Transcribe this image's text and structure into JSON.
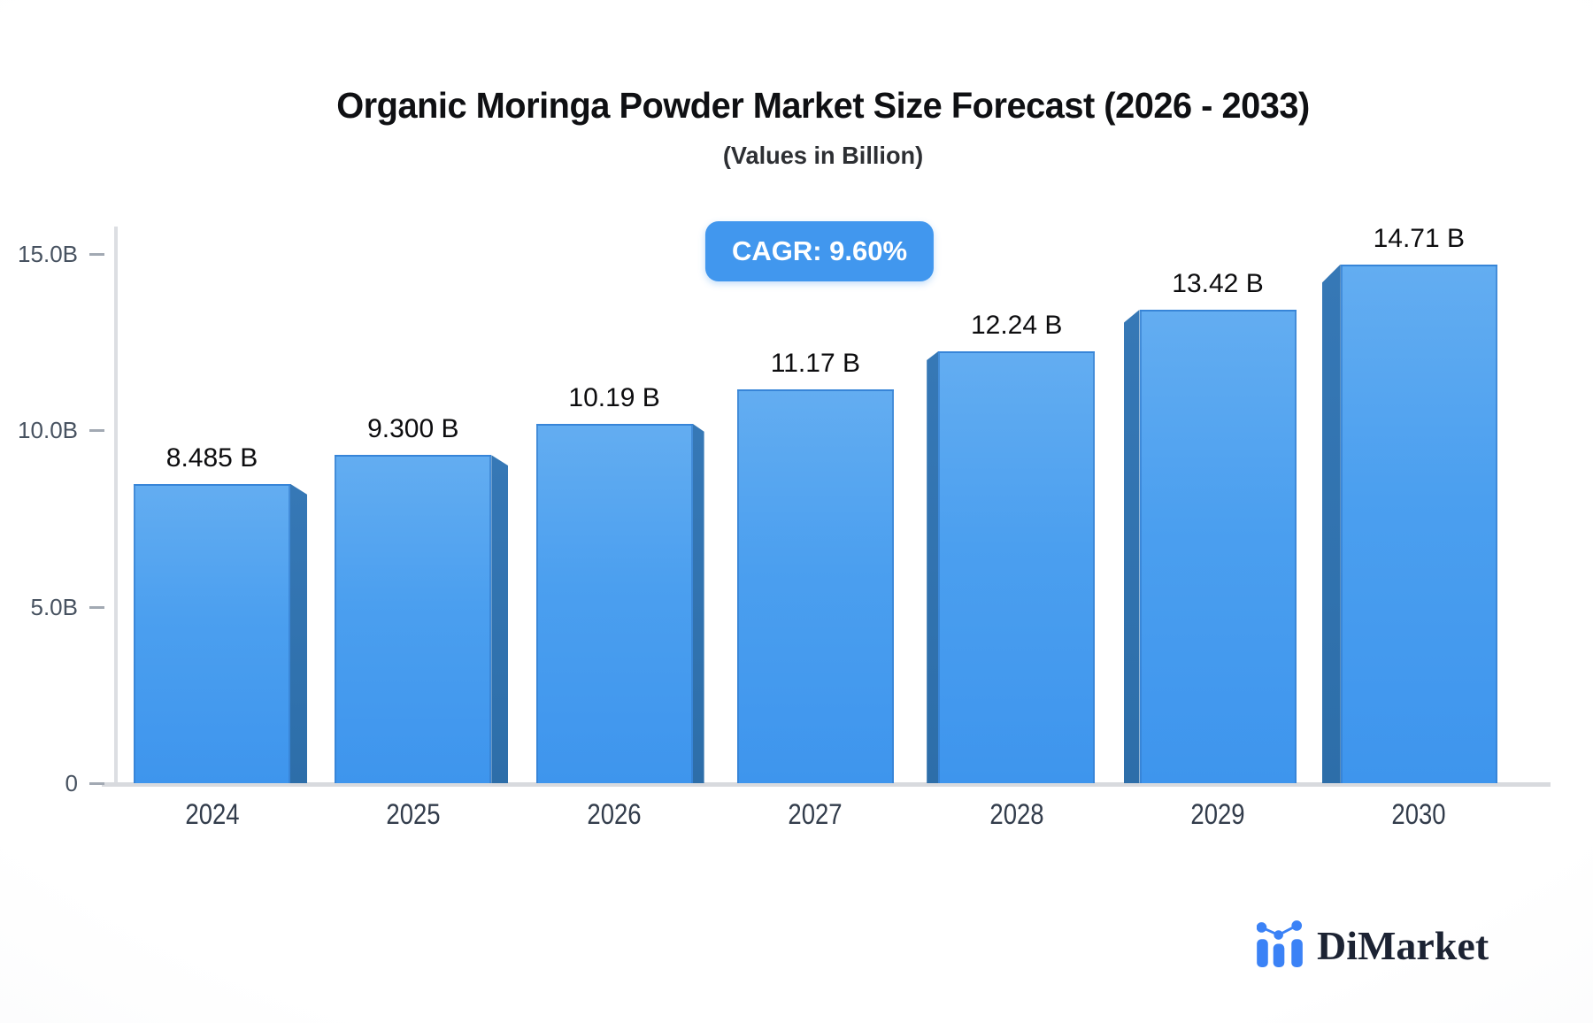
{
  "header": {
    "title": "Organic Moringa Powder Market Size Forecast (2026 - 2033)",
    "subtitle": "(Values in Billion)",
    "cagr_badge": "CAGR: 9.60%"
  },
  "chart_data": {
    "type": "bar",
    "title": "Organic Moringa Powder Market Size Forecast (2026 - 2033)",
    "subtitle": "(Values in Billion)",
    "cagr_percent": "9.60%",
    "categories": [
      "2024",
      "2025",
      "2026",
      "2027",
      "2028",
      "2029",
      "2030"
    ],
    "values": [
      8.485,
      9.3,
      10.19,
      11.17,
      12.24,
      13.42,
      14.71
    ],
    "value_labels": [
      "8.485 B",
      "9.300 B",
      "10.19 B",
      "11.17 B",
      "12.24 B",
      "13.42 B",
      "14.71 B"
    ],
    "xlabel": "",
    "ylabel": "",
    "ylim": [
      0,
      15
    ],
    "yticks": {
      "values": [
        0,
        5,
        10,
        15
      ],
      "labels": [
        "0",
        "5.0B",
        "10.0B",
        "15.0B"
      ]
    },
    "grid": false,
    "legend": false,
    "bar_color": "#4b9fef",
    "bar_side_color": "#2e71ad",
    "badge_color": "#4197ee"
  },
  "branding": {
    "logo_text": "DiMarket",
    "logo_icon": "bar-line-chart-icon",
    "logo_text_color": "#1c2333",
    "logo_icon_color": "#3b82f6"
  }
}
